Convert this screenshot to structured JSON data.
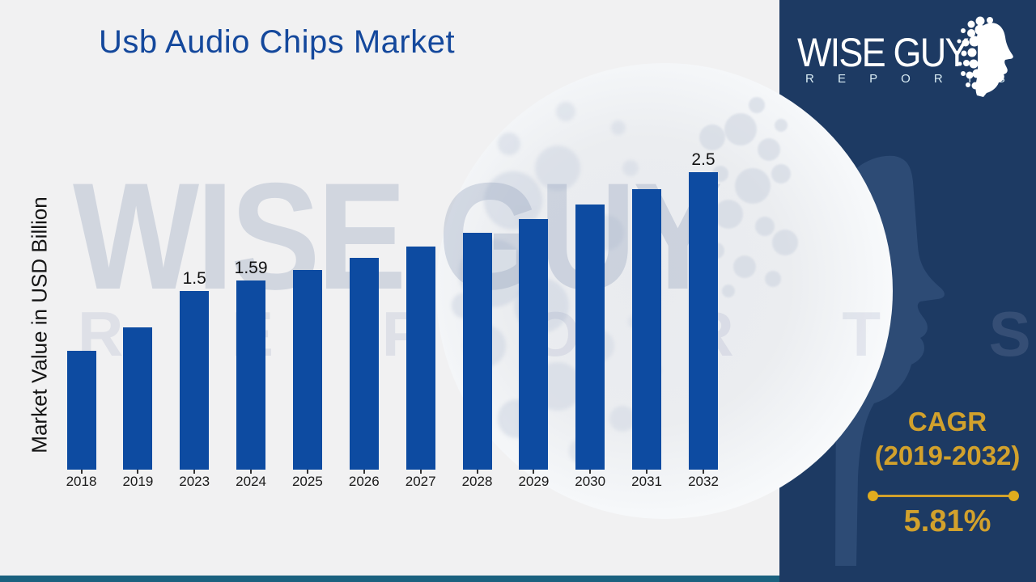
{
  "title": {
    "text": "Usb Audio Chips Market"
  },
  "watermark": {
    "line1": "WISE GUY",
    "line2": "R E P O R T S"
  },
  "brand": {
    "line1": "WISE GUY",
    "line2": "R E P O R T S"
  },
  "cagr": {
    "label": "CAGR",
    "range": "(2019-2032)",
    "value": "5.81%"
  },
  "chart_data": {
    "type": "bar",
    "title": "Usb Audio Chips Market",
    "xlabel": "",
    "ylabel": "Market Value in USD Billion",
    "categories": [
      "2018",
      "2019",
      "2023",
      "2024",
      "2025",
      "2026",
      "2027",
      "2028",
      "2029",
      "2030",
      "2031",
      "2032"
    ],
    "values": [
      1.0,
      1.2,
      1.5,
      1.59,
      1.68,
      1.78,
      1.88,
      1.99,
      2.11,
      2.23,
      2.36,
      2.5
    ],
    "bar_labels": {
      "2023": "1.5",
      "2024": "1.59",
      "2032": "2.5"
    },
    "ylim": [
      0,
      2.72
    ],
    "grid": false,
    "legend": false,
    "bar_color": "#0d4ba1"
  },
  "colors": {
    "background": "#f1f1f2",
    "bar_blue": "#0d4ba1",
    "title_blue": "#14489c",
    "panel_navy": "#1d3a63",
    "face_blue": "#2d4b75",
    "gold": "#d2a12c",
    "teal_strip": "#1a617f"
  }
}
